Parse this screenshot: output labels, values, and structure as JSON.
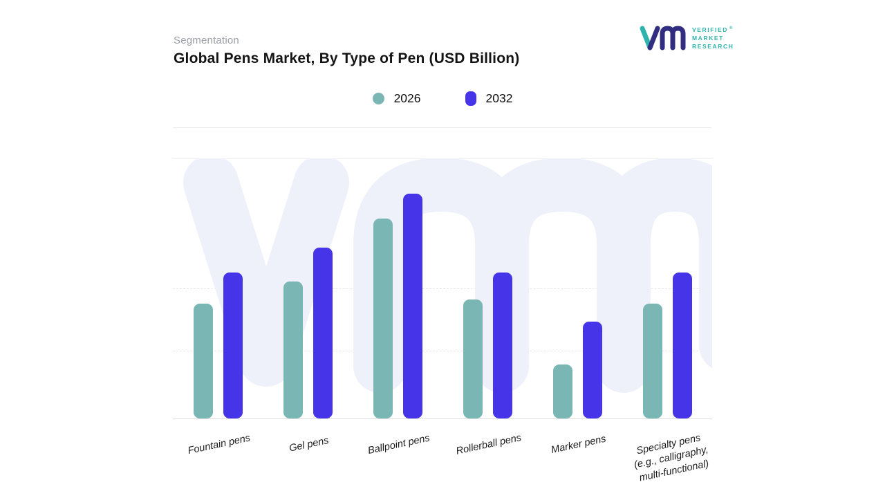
{
  "header": {
    "eyebrow": "Segmentation",
    "title": "Global Pens Market, By Type of Pen (USD Billion)"
  },
  "logo": {
    "lines": [
      "VERIFIED",
      "MARKET",
      "RESEARCH"
    ],
    "registered": "®"
  },
  "colors": {
    "series_2026": "#7ab7b4",
    "series_2032": "#4634e8",
    "brand_teal": "#2fb3ad",
    "brand_navy": "#312e81",
    "watermark": "#eef0fa"
  },
  "chart_data": {
    "type": "bar",
    "title": "Global Pens Market, By Type of Pen (USD Billion)",
    "xlabel": "",
    "ylabel": "",
    "ylim": [
      0,
      10.5
    ],
    "grid": "horizontal-dashed",
    "legend_position": "top-center",
    "watermark": "vmr",
    "categories": [
      "Fountain pens",
      "Gel pens",
      "Ballpoint pens",
      "Rollerball pens",
      "Marker pens",
      "Specialty pens (e.g., calligraphy, multi-functional)"
    ],
    "categories_display": [
      [
        "Fountain pens"
      ],
      [
        "Gel pens"
      ],
      [
        "Ballpoint pens"
      ],
      [
        "Rollerball pens"
      ],
      [
        "Marker pens"
      ],
      [
        "Specialty pens",
        "(e.g., calligraphy,",
        "multi-functional)"
      ]
    ],
    "series": [
      {
        "name": "2026",
        "color": "#7ab7b4",
        "values": [
          5.1,
          6.1,
          8.9,
          5.3,
          2.4,
          5.1
        ]
      },
      {
        "name": "2032",
        "color": "#4634e8",
        "values": [
          6.5,
          7.6,
          10.0,
          6.5,
          4.3,
          6.5
        ]
      }
    ]
  }
}
